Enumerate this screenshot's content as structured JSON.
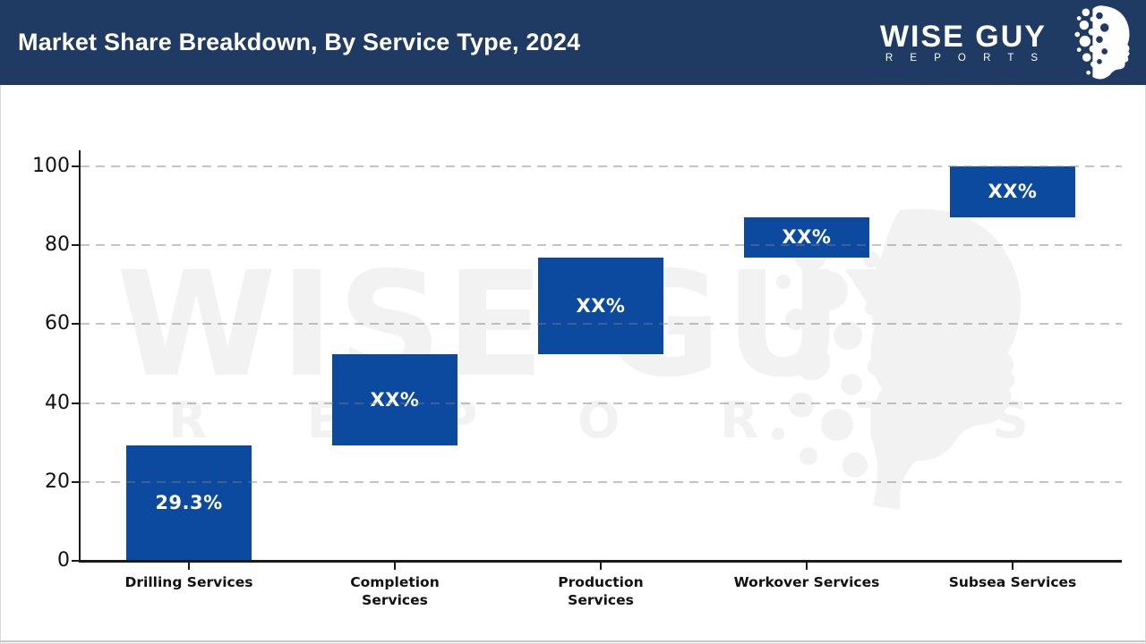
{
  "header": {
    "title": "Market Share Breakdown, By Service Type, 2024",
    "bg_color": "#1f3a63",
    "text_color": "#ffffff",
    "logo": {
      "line1": "WISE GUY",
      "line2": "R E P O R T S"
    }
  },
  "watermark": {
    "line1": "WISE GUY",
    "line2": "R E P O R T S"
  },
  "chart_data": {
    "type": "bar",
    "subtype": "waterfall",
    "title": "Market Share Breakdown, By Service Type, 2024",
    "xlabel": "",
    "ylabel": "",
    "ylim": [
      0,
      105
    ],
    "y_ticks": [
      0,
      20,
      40,
      60,
      80,
      100
    ],
    "grid": "horizontal-dashed",
    "legend": "none",
    "bar_color": "#0b4a9e",
    "value_label_color": "#ffffff",
    "categories": [
      "Drilling Services",
      "Completion Services",
      "Production Services",
      "Workover Services",
      "Subsea Services"
    ],
    "tick_labels": [
      "Drilling Services",
      "Completion\nServices",
      "Production\nServices",
      "Workover Services",
      "Subsea Services"
    ],
    "segments": [
      {
        "category": "Drilling Services",
        "start": 0,
        "end": 29.3,
        "value": 29.3,
        "label": "29.3%"
      },
      {
        "category": "Completion Services",
        "start": 29.3,
        "end": 52.4,
        "value": 23.1,
        "label": "XX%"
      },
      {
        "category": "Production Services",
        "start": 52.4,
        "end": 76.9,
        "value": 24.5,
        "label": "XX%"
      },
      {
        "category": "Workover Services",
        "start": 76.9,
        "end": 87.1,
        "value": 10.2,
        "label": "XX%"
      },
      {
        "category": "Subsea Services",
        "start": 87.1,
        "end": 100,
        "value": 12.9,
        "label": "XX%"
      }
    ]
  }
}
